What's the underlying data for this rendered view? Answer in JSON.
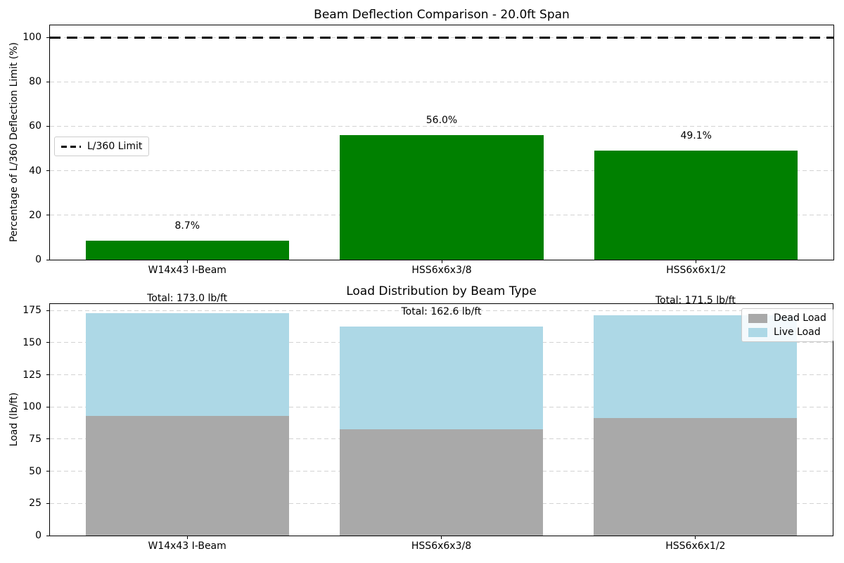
{
  "chart_data": [
    {
      "type": "bar",
      "title": "Beam Deflection Comparison - 20.0ft Span",
      "ylabel": "Percentage of L/360 Deflection Limit (%)",
      "categories": [
        "W14x43 I-Beam",
        "HSS6x6x3/8",
        "HSS6x6x1/2"
      ],
      "values": [
        8.7,
        56.0,
        49.1
      ],
      "bar_labels": [
        "8.7%",
        "56.0%",
        "49.1%"
      ],
      "bar_color": "#008000",
      "ylim": [
        0,
        105.4
      ],
      "yticks": [
        0,
        20,
        40,
        60,
        80,
        100
      ],
      "grid": "dashed-y",
      "hline": {
        "y": 100,
        "style": "dashed",
        "color": "#000000"
      },
      "legend_position": "center-left",
      "legend": {
        "entries": [
          {
            "label": "L/360 Limit",
            "swatch": "dashed-line",
            "color": "#000000"
          }
        ]
      }
    },
    {
      "type": "stacked-bar",
      "title": "Load Distribution by Beam Type",
      "ylabel": "Load (lb/ft)",
      "categories": [
        "W14x43 I-Beam",
        "HSS6x6x3/8",
        "HSS6x6x1/2"
      ],
      "series": [
        {
          "name": "Dead Load",
          "values": [
            93.0,
            82.6,
            91.5
          ],
          "color": "#a9a9a9"
        },
        {
          "name": "Live Load",
          "values": [
            80.0,
            80.0,
            80.0
          ],
          "color": "#add8e6"
        }
      ],
      "totals": [
        173.0,
        162.6,
        171.5
      ],
      "total_labels": [
        "Total: 173.0 lb/ft",
        "Total: 162.6 lb/ft",
        "Total: 171.5 lb/ft"
      ],
      "ylim": [
        0,
        180
      ],
      "yticks": [
        0,
        25,
        50,
        75,
        100,
        125,
        150,
        175
      ],
      "grid": "dashed-y",
      "legend_position": "upper-right",
      "legend": {
        "entries": [
          {
            "label": "Dead Load",
            "swatch": "patch",
            "color": "#a9a9a9"
          },
          {
            "label": "Live Load",
            "swatch": "patch",
            "color": "#add8e6"
          }
        ]
      }
    }
  ]
}
